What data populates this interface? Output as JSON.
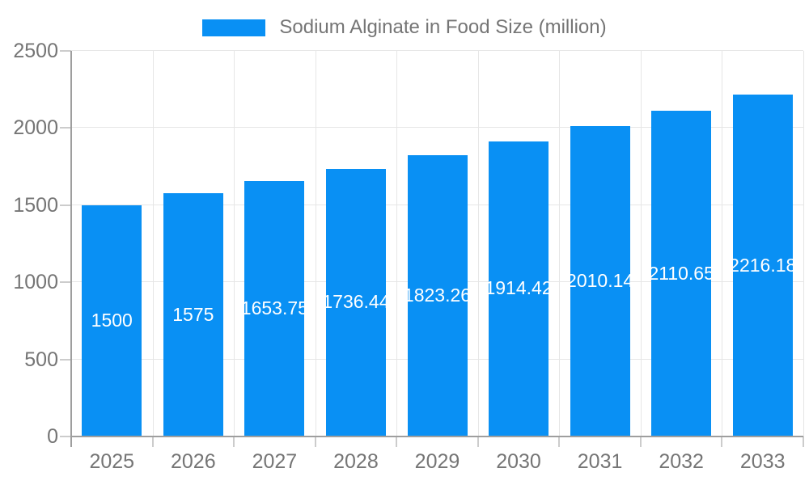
{
  "legend": {
    "label": "Sodium Alginate in Food Size (million)"
  },
  "colors": {
    "bar": "#0990f4",
    "grid": "#e6e6e6",
    "axis": "#9e9e9e",
    "tick": "#cccccc",
    "text": "#757575",
    "value_label": "#ffffff",
    "background": "#ffffff"
  },
  "chart_data": {
    "type": "bar",
    "title": "Sodium Alginate in Food Size (million)",
    "series_name": "Sodium Alginate in Food Size (million)",
    "categories": [
      "2025",
      "2026",
      "2027",
      "2028",
      "2029",
      "2030",
      "2031",
      "2032",
      "2033"
    ],
    "values": [
      1500,
      1575,
      1653.75,
      1736.44,
      1823.26,
      1914.42,
      2010.14,
      2110.65,
      2216.18
    ],
    "value_labels": [
      "1500",
      "1575",
      "1653.75",
      "1736.44",
      "1823.26",
      "1914.42",
      "2010.14",
      "2110.65",
      "2216.18"
    ],
    "xlabel": "",
    "ylabel": "",
    "ylim": [
      0,
      2500
    ],
    "yticks": [
      0,
      500,
      1000,
      1500,
      2000,
      2500
    ],
    "ytick_labels": [
      "0",
      "500",
      "1000",
      "1500",
      "2000",
      "2500"
    ],
    "grid": true,
    "legend_position": "top",
    "value_labels_position": "inside-center"
  }
}
